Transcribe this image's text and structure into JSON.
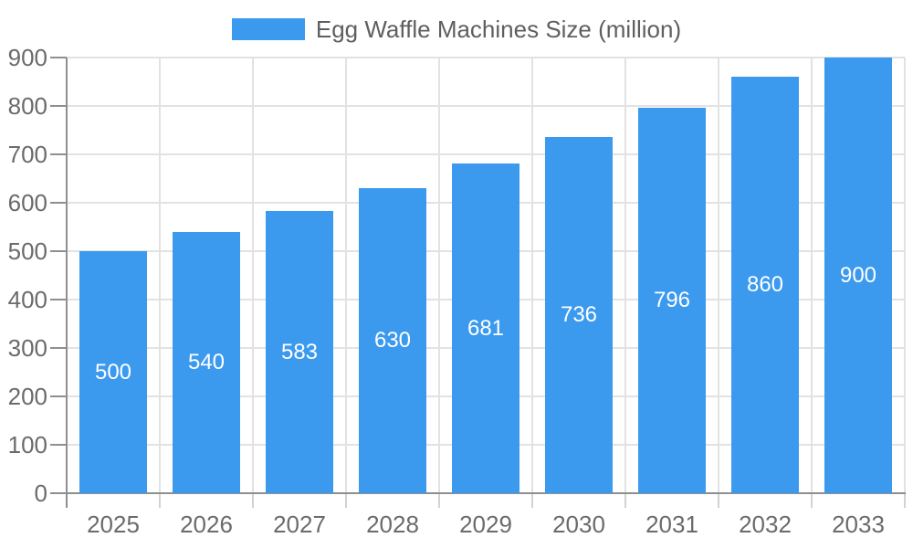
{
  "legend": {
    "label": "Egg Waffle Machines Size (million)"
  },
  "chart_data": {
    "type": "bar",
    "title": "Egg Waffle Machines Size (million)",
    "categories": [
      "2025",
      "2026",
      "2027",
      "2028",
      "2029",
      "2030",
      "2031",
      "2032",
      "2033"
    ],
    "values": [
      500,
      540,
      583,
      630,
      681,
      736,
      796,
      860,
      900
    ],
    "value_labels": [
      "500",
      "540",
      "583",
      "630",
      "681",
      "736",
      "796",
      "860",
      "900"
    ],
    "xlabel": "",
    "ylabel": "",
    "ylim": [
      0,
      900
    ],
    "y_tick_step": 100,
    "y_tick_labels": [
      "0",
      "100",
      "200",
      "300",
      "400",
      "500",
      "600",
      "700",
      "800",
      "900"
    ],
    "grid": true,
    "legend_position": "top",
    "value_label_position": "inside-center",
    "colors": {
      "bar": "#3C9AEE",
      "grid": "#E2E2E2",
      "axis": "#8F8F8F",
      "x_tick": "#D2D2D2",
      "tick_label": "#6B6B6B",
      "legend_text": "#5F5F5F",
      "value_label": "#FFFFFF",
      "background": "#FFFFFF"
    }
  }
}
